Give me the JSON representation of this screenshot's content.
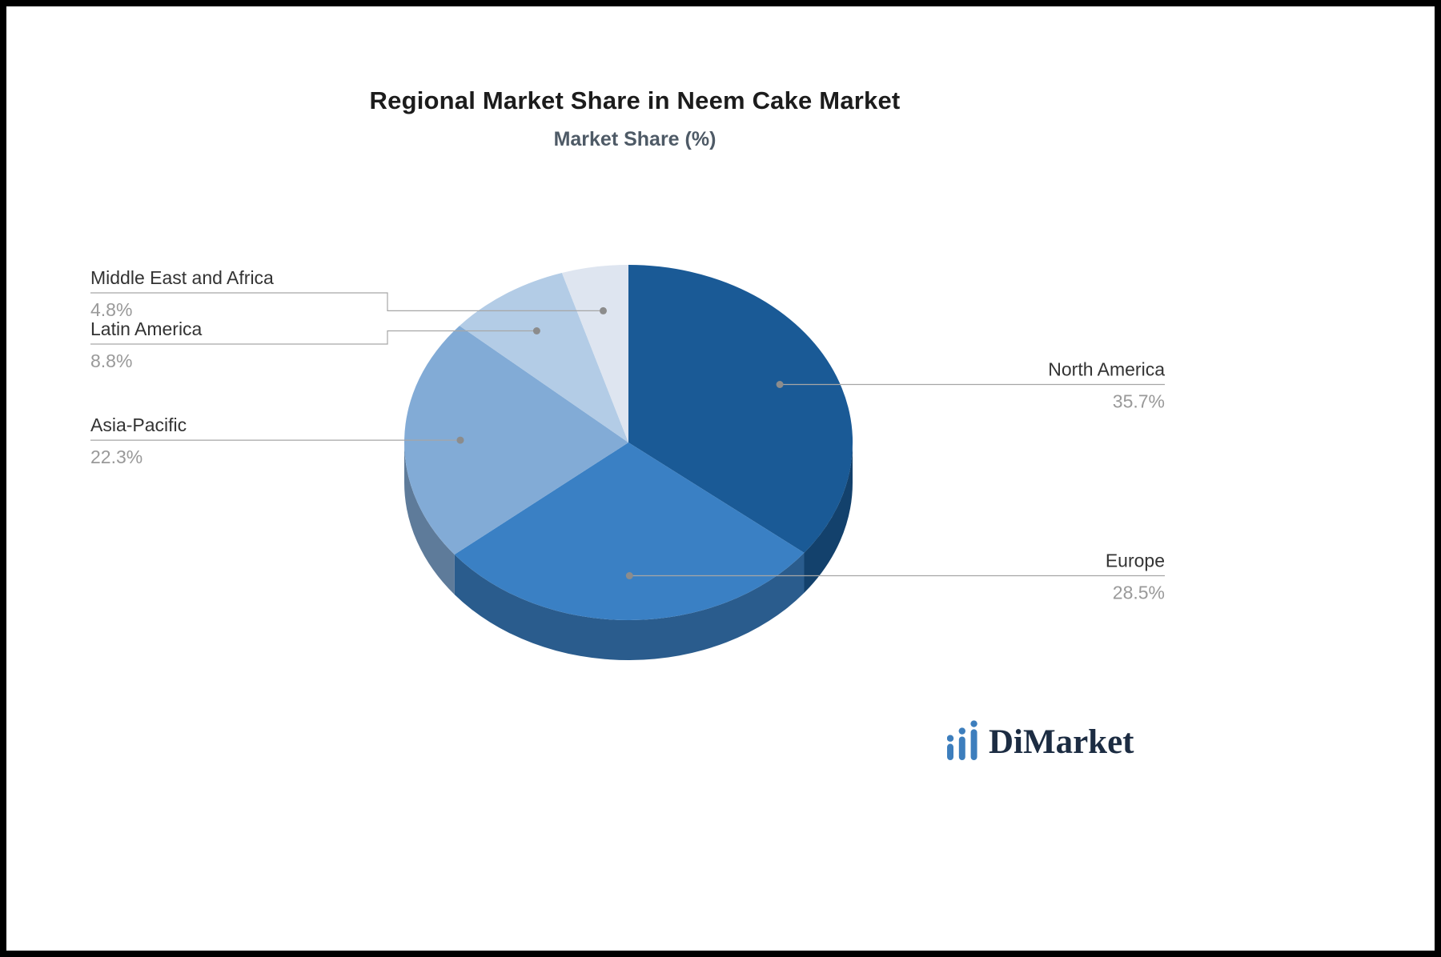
{
  "frame": {
    "background": "#ffffff",
    "border_color": "#000000"
  },
  "header": {
    "title": "Regional Market Share in Neem Cake Market",
    "subtitle": "Market Share (%)"
  },
  "chart_data": {
    "type": "pie",
    "style": "3d",
    "title": "Regional Market Share in Neem Cake Market",
    "subtitle": "Market Share (%)",
    "unit": "%",
    "start_angle_deg": -90,
    "direction": "clockwise",
    "legend": "none",
    "segments": [
      {
        "label": "North America",
        "value": 35.7,
        "display": "35.7%",
        "color": "#1A5A96"
      },
      {
        "label": "Europe",
        "value": 28.5,
        "display": "28.5%",
        "color": "#3A80C4"
      },
      {
        "label": "Asia-Pacific",
        "value": 22.3,
        "display": "22.3%",
        "color": "#82ABD6"
      },
      {
        "label": "Latin America",
        "value": 8.8,
        "display": "8.8%",
        "color": "#B3CCE6"
      },
      {
        "label": "Middle East and Africa",
        "value": 4.8,
        "display": "4.8%",
        "color": "#DEE5F0"
      }
    ],
    "label_name_color": "#333333",
    "label_value_color": "#999999",
    "leader_line_color": "#A6A6A6"
  },
  "logo": {
    "text": "DiMarket",
    "icon": "bar-chart-icon",
    "icon_color": "#3D7EBD",
    "text_color": "#1C2C42"
  }
}
